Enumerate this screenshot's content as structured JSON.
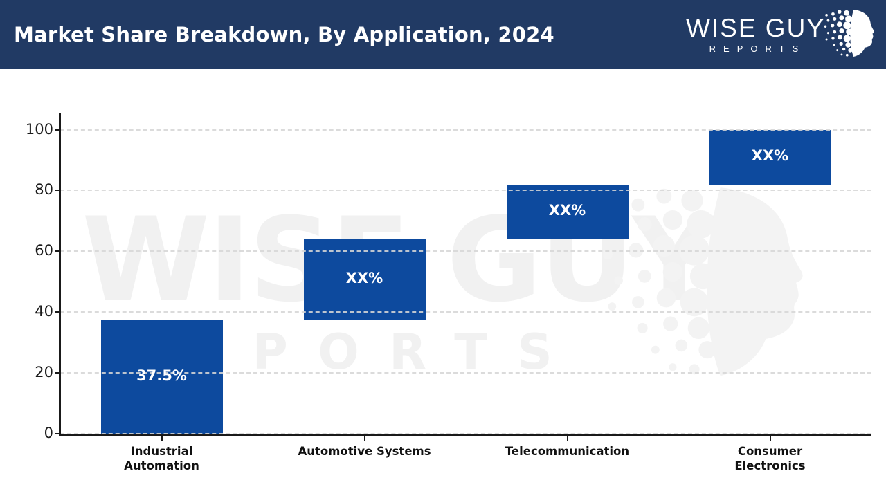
{
  "header": {
    "title": "Market Share Breakdown, By Application, 2024",
    "bg_color": "#213a64",
    "brand": {
      "name": "WISE GUY",
      "subtitle": "REPORTS"
    }
  },
  "watermark": {
    "line1": "WISE GUY",
    "line2": "REPORTS"
  },
  "chart_data": {
    "type": "bar",
    "subtype": "floating-segment-stacked",
    "title": "Market Share Breakdown, By Application, 2024",
    "categories": [
      "Industrial Automation",
      "Automotive Systems",
      "Telecommunication",
      "Consumer Electronics"
    ],
    "category_lines": [
      [
        "Industrial",
        "Automation"
      ],
      [
        "Automotive Systems"
      ],
      [
        "Telecommunication"
      ],
      [
        "Consumer",
        "Electronics"
      ]
    ],
    "series": [
      {
        "name": "Market Share %",
        "segments": [
          {
            "category": "Industrial Automation",
            "start": 0,
            "end": 37.5,
            "label": "37.5%"
          },
          {
            "category": "Automotive Systems",
            "start": 37.5,
            "end": 64,
            "label": "XX%"
          },
          {
            "category": "Telecommunication",
            "start": 64,
            "end": 82,
            "label": "XX%"
          },
          {
            "category": "Consumer Electronics",
            "start": 82,
            "end": 100,
            "label": "XX%"
          }
        ]
      }
    ],
    "xlabel": "",
    "ylabel": "",
    "ylim": [
      0,
      105
    ],
    "yticks": [
      0,
      20,
      40,
      60,
      80,
      100
    ],
    "grid": "horizontal dashed, drawn above bars",
    "legend": "none",
    "bar_color": "#0d4a9e",
    "axis_color": "#1a1a1a"
  }
}
